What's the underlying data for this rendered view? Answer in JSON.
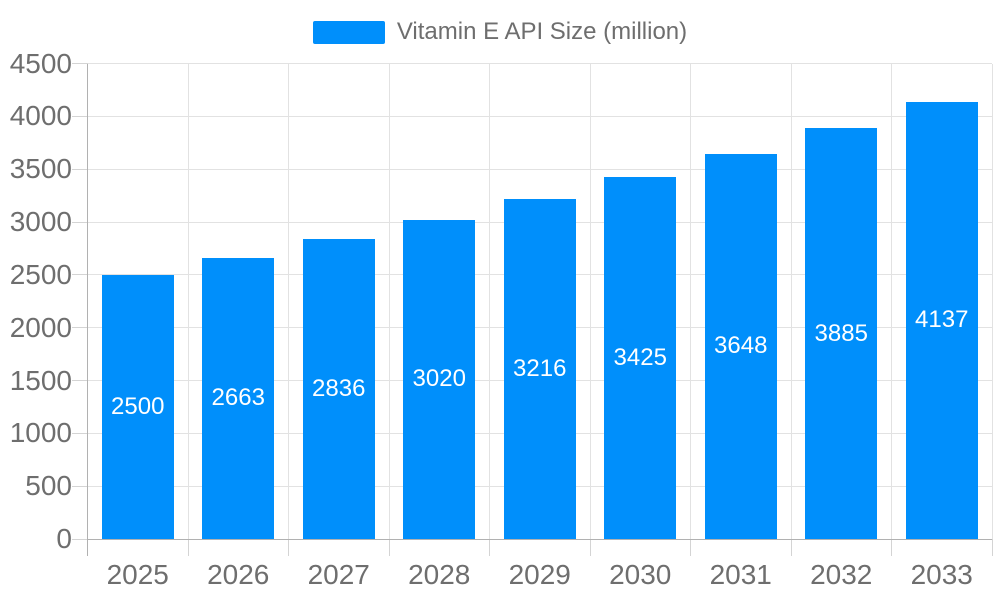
{
  "chart_data": {
    "type": "bar",
    "title": "Vitamin E API Size (million)",
    "categories": [
      "2025",
      "2026",
      "2027",
      "2028",
      "2029",
      "2030",
      "2031",
      "2032",
      "2033"
    ],
    "series": [
      {
        "name": "Vitamin E API Size (million)",
        "values": [
          2500,
          2663,
          2836,
          3020,
          3216,
          3425,
          3648,
          3885,
          4137
        ]
      }
    ],
    "data_labels": [
      "2500",
      "2663",
      "2836",
      "3020",
      "3216",
      "3425",
      "3648",
      "3885",
      "4137"
    ],
    "ytick_labels": [
      "0",
      "500",
      "1000",
      "1500",
      "2000",
      "2500",
      "3000",
      "3500",
      "4000",
      "4500"
    ],
    "xlabel": "",
    "ylabel": "",
    "ylim": [
      0,
      4500
    ],
    "ytick_step": 500,
    "grid": true,
    "legend_position": "top",
    "colors": {
      "bar": "#008FFB",
      "axis_label": "#6e6e6e",
      "gridline": "#e2e2e2",
      "axis_line": "#b1b1b1",
      "tick_mark": "#d4d4d4",
      "data_label": "#ffffff"
    }
  }
}
